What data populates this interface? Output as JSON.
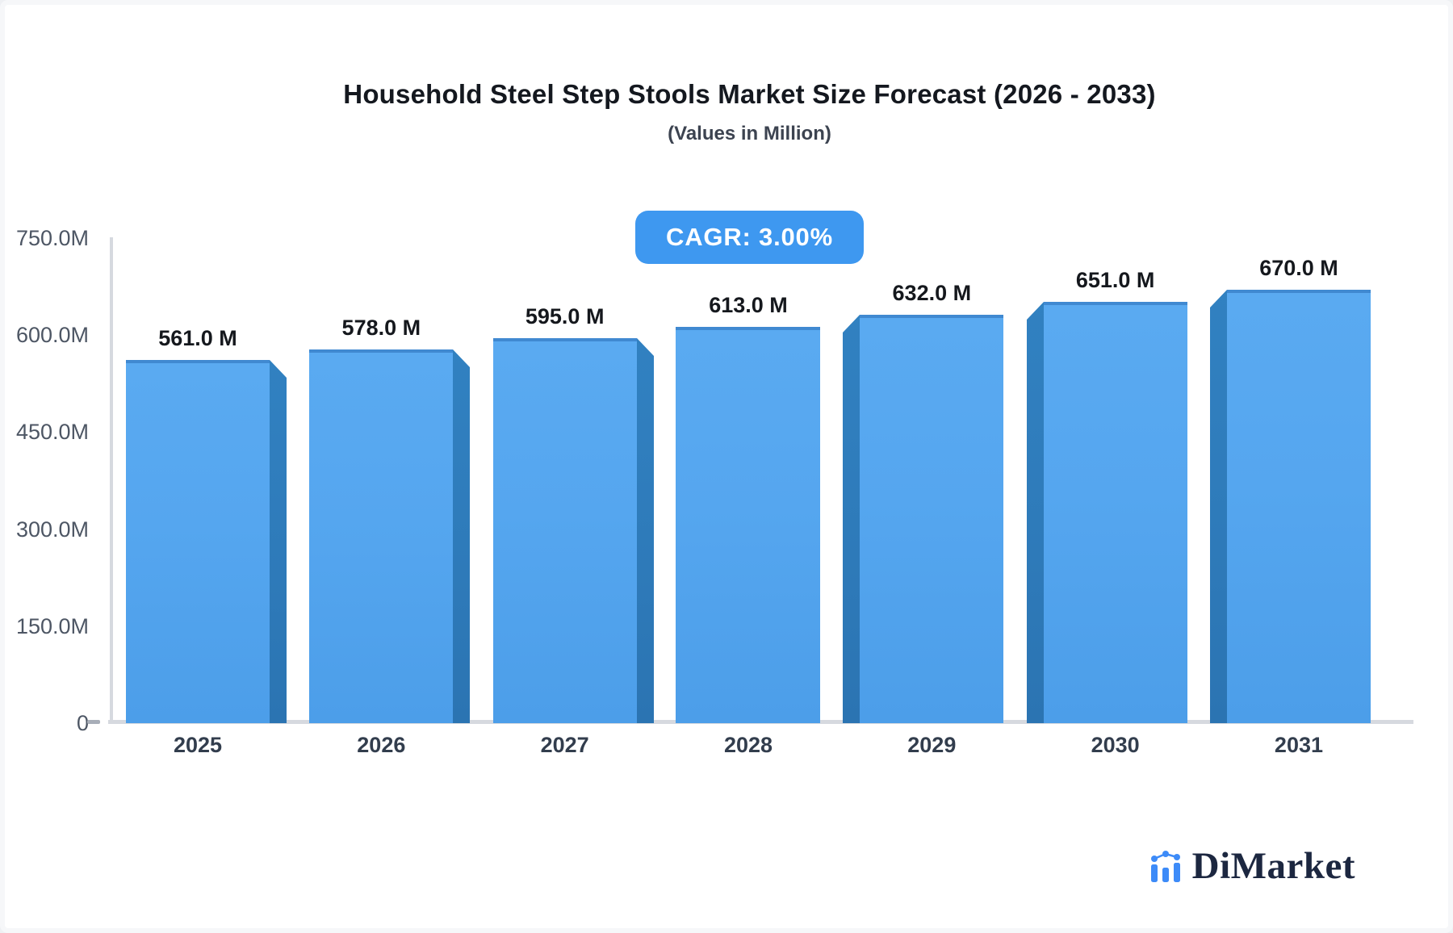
{
  "chart_data": {
    "type": "bar",
    "title": "Household Steel Step Stools Market Size Forecast (2026 - 2033)",
    "subtitle": "(Values in Million)",
    "cagr_badge": "CAGR: 3.00%",
    "categories": [
      "2025",
      "2026",
      "2027",
      "2028",
      "2029",
      "2030",
      "2031"
    ],
    "values": [
      561,
      578,
      595,
      613,
      632,
      651,
      670
    ],
    "value_labels": [
      "561.0 M",
      "578.0 M",
      "595.0 M",
      "613.0 M",
      "632.0 M",
      "651.0 M",
      "670.0 M"
    ],
    "unit": "Million",
    "ylim": [
      0,
      750
    ],
    "yticks": [
      {
        "value": 750,
        "label": "750.0M"
      },
      {
        "value": 600,
        "label": "600.0M"
      },
      {
        "value": 450,
        "label": "450.0M"
      },
      {
        "value": 300,
        "label": "300.0M"
      },
      {
        "value": 150,
        "label": "150.0M"
      },
      {
        "value": 0,
        "label": "0"
      }
    ],
    "grid": false,
    "legend": false,
    "bar_color": "#55A6EF",
    "bar_side_color": "#2E7AB9",
    "accent_color": "#3E98F0",
    "effect": "3d-perspective-center"
  },
  "branding": {
    "logo_text": "DiMarket",
    "logo_icon": "bar-chart-icon",
    "logo_color": "#1C2740",
    "icon_color": "#3D8BF8"
  }
}
